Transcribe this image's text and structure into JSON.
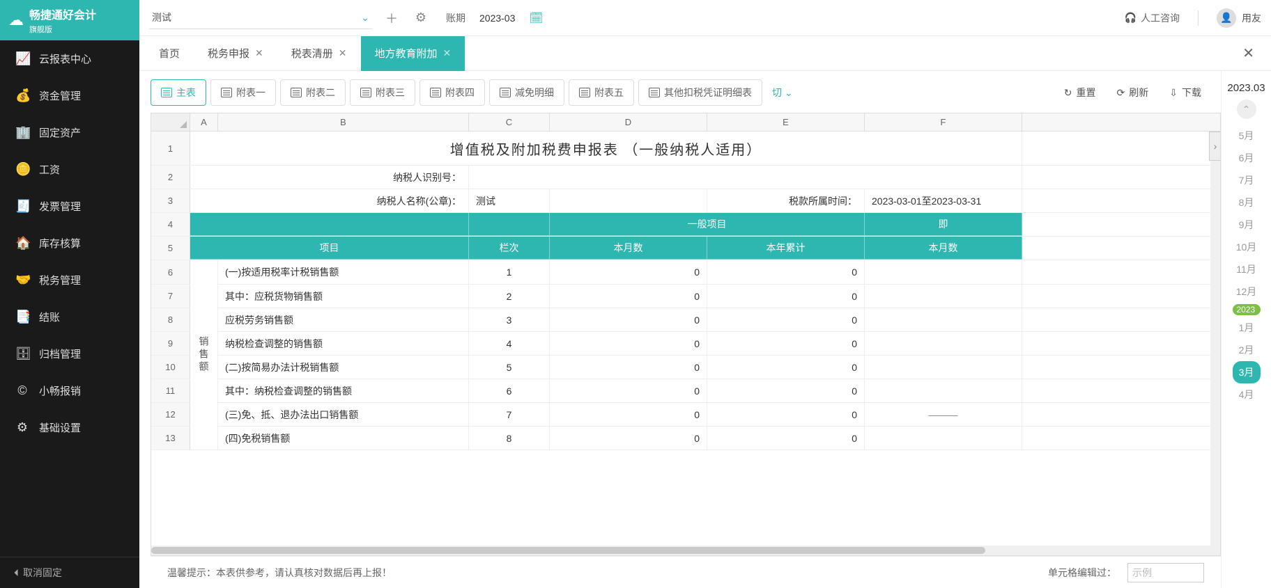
{
  "brand": {
    "name": "畅捷通好会计",
    "edition": "旗舰版"
  },
  "topbar": {
    "company": "测试",
    "period_label": "账期",
    "period_value": "2023-03",
    "support": "人工咨询",
    "username": "用友"
  },
  "sidebar": {
    "items": [
      {
        "icon": "📈",
        "label": "云报表中心"
      },
      {
        "icon": "💰",
        "label": "资金管理"
      },
      {
        "icon": "🏢",
        "label": "固定资产"
      },
      {
        "icon": "🪙",
        "label": "工资"
      },
      {
        "icon": "🧾",
        "label": "发票管理"
      },
      {
        "icon": "🏠",
        "label": "库存核算"
      },
      {
        "icon": "🤝",
        "label": "税务管理"
      },
      {
        "icon": "📑",
        "label": "结账"
      },
      {
        "icon": "🗄",
        "label": "归档管理"
      },
      {
        "icon": "©",
        "label": "小畅报销"
      },
      {
        "icon": "⚙",
        "label": "基础设置"
      }
    ],
    "collapse": "取消固定"
  },
  "tabs": [
    {
      "label": "首页",
      "closable": false,
      "active": false
    },
    {
      "label": "税务申报",
      "closable": true,
      "active": false
    },
    {
      "label": "税表清册",
      "closable": true,
      "active": false
    },
    {
      "label": "地方教育附加",
      "closable": true,
      "active": true
    }
  ],
  "subtabs": [
    {
      "label": "主表",
      "active": true
    },
    {
      "label": "附表一",
      "active": false
    },
    {
      "label": "附表二",
      "active": false
    },
    {
      "label": "附表三",
      "active": false
    },
    {
      "label": "附表四",
      "active": false
    },
    {
      "label": "减免明细",
      "active": false
    },
    {
      "label": "附表五",
      "active": false
    },
    {
      "label": "其他扣税凭证明细表",
      "active": false
    }
  ],
  "toolbar": {
    "switch": "切",
    "reset": "重置",
    "refresh": "刷新",
    "download": "下载"
  },
  "sheet": {
    "columns": [
      "A",
      "B",
      "C",
      "D",
      "E",
      "F"
    ],
    "title": "增值税及附加税费申报表 （一般纳税人适用）",
    "meta": {
      "taxpayer_id_label": "纳税人识别号：",
      "taxpayer_id": "",
      "taxpayer_name_label": "纳税人名称(公章)：",
      "taxpayer_name": "测试",
      "period_label": "税款所属时间：",
      "period_value": "2023-03-01至2023-03-31"
    },
    "header": {
      "project": "项目",
      "colno": "栏次",
      "general": "一般项目",
      "instant": "即",
      "month": "本月数",
      "year_total": "本年累计",
      "month2": "本月数"
    },
    "group_label": "销售额",
    "rows": [
      {
        "n": 6,
        "name": "(一)按适用税率计税销售额",
        "col": "1",
        "m": "0",
        "y": "0",
        "m2": ""
      },
      {
        "n": 7,
        "name": "其中：应税货物销售额",
        "col": "2",
        "m": "0",
        "y": "0",
        "m2": ""
      },
      {
        "n": 8,
        "name": "应税劳务销售额",
        "col": "3",
        "m": "0",
        "y": "0",
        "m2": ""
      },
      {
        "n": 9,
        "name": "纳税检查调整的销售额",
        "col": "4",
        "m": "0",
        "y": "0",
        "m2": ""
      },
      {
        "n": 10,
        "name": "(二)按简易办法计税销售额",
        "col": "5",
        "m": "0",
        "y": "0",
        "m2": ""
      },
      {
        "n": 11,
        "name": "其中：纳税检查调整的销售额",
        "col": "6",
        "m": "0",
        "y": "0",
        "m2": ""
      },
      {
        "n": 12,
        "name": "(三)免、抵、退办法出口销售额",
        "col": "7",
        "m": "0",
        "y": "0",
        "m2": "———"
      },
      {
        "n": 13,
        "name": "(四)免税销售额",
        "col": "8",
        "m": "0",
        "y": "0",
        "m2": ""
      }
    ]
  },
  "period_panel": {
    "current": "2023.03",
    "badge": "2023",
    "months": [
      "5月",
      "6月",
      "7月",
      "8月",
      "9月",
      "10月",
      "11月",
      "12月",
      "1月",
      "2月",
      "3月",
      "4月"
    ],
    "active_index": 10
  },
  "footer": {
    "tip": "温馨提示：本表供参考，请认真核对数据后再上报！",
    "cell_edit_label": "单元格编辑过：",
    "cell_edit_placeholder": "示例"
  },
  "colors": {
    "accent": "#2db7b0",
    "sidebar_bg": "#1a1a1a",
    "header_bg": "#2db7b0",
    "badge": "#7bc043"
  }
}
